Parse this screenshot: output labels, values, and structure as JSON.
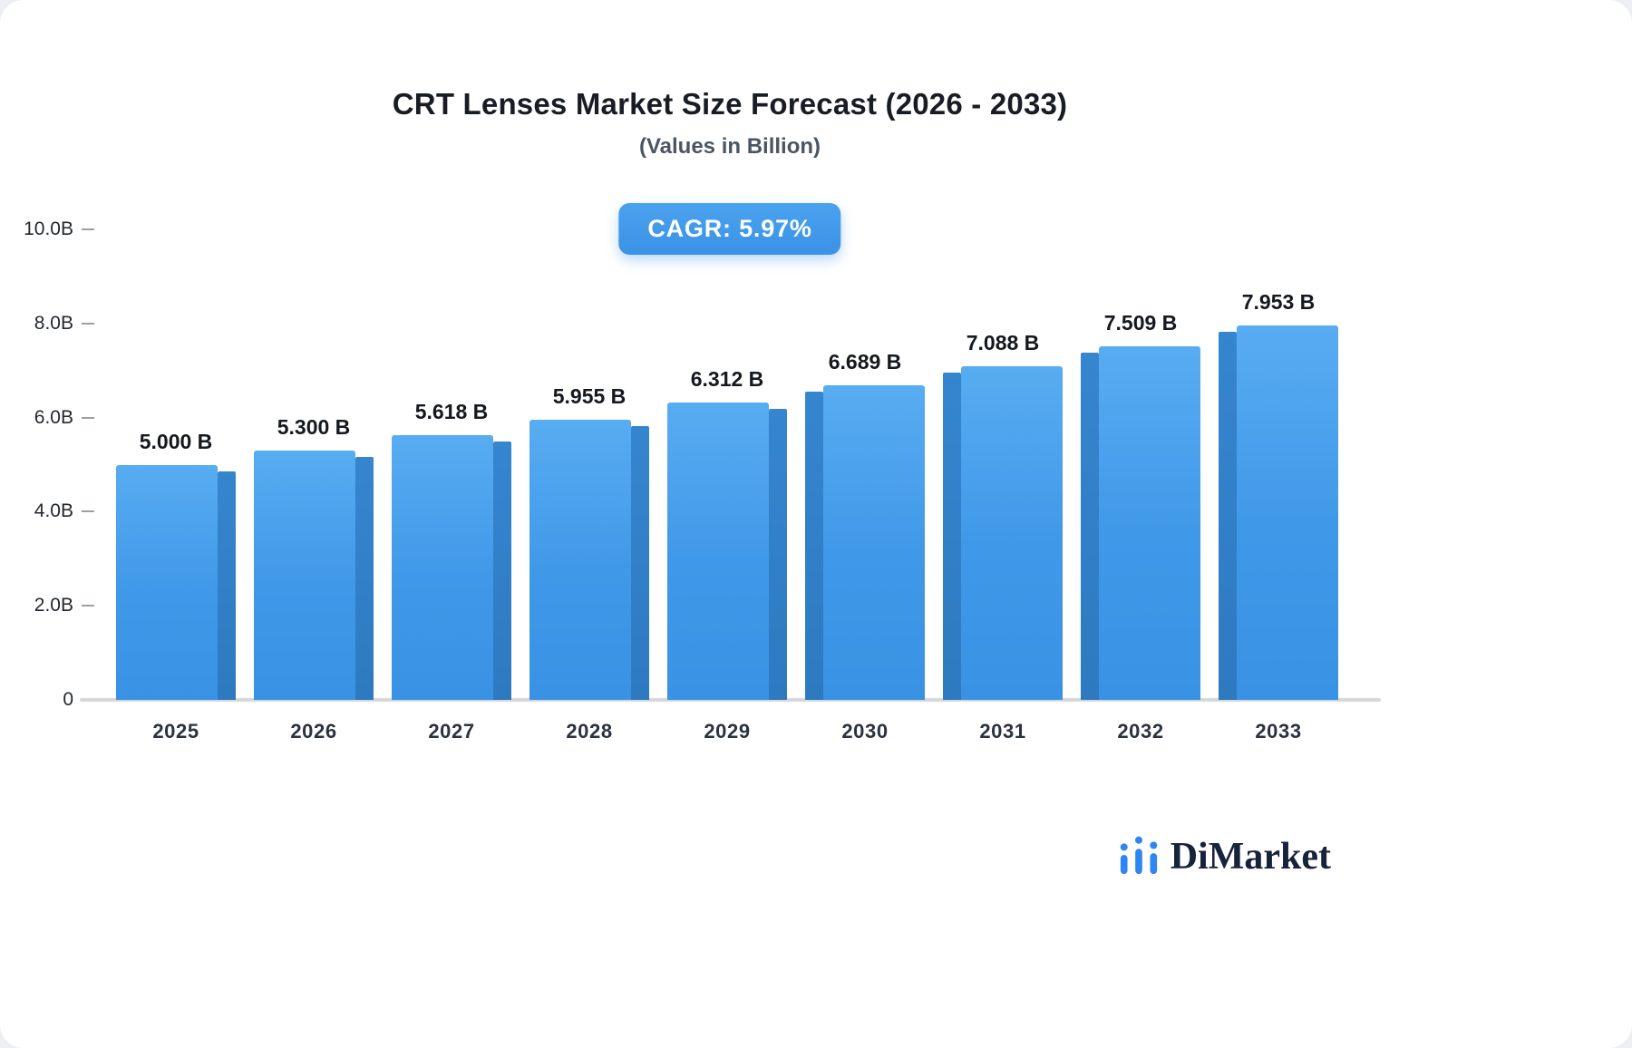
{
  "header": {
    "title": "CRT Lenses Market Size Forecast (2026 - 2033)",
    "subtitle": "(Values in Billion)",
    "cagr_label": "CAGR: 5.97%"
  },
  "chart_data": {
    "type": "bar",
    "title": "CRT Lenses Market Size Forecast (2026 - 2033)",
    "subtitle": "(Values in Billion)",
    "unit": "Billion",
    "categories": [
      "2025",
      "2026",
      "2027",
      "2028",
      "2029",
      "2030",
      "2031",
      "2032",
      "2033"
    ],
    "values": [
      5.0,
      5.3,
      5.618,
      5.955,
      6.312,
      6.689,
      7.088,
      7.509,
      7.953
    ],
    "value_labels": [
      "5.000 B",
      "5.300 B",
      "5.618 B",
      "5.955 B",
      "6.312 B",
      "6.689 B",
      "7.088 B",
      "7.509 B",
      "7.953 B"
    ],
    "cagr": "5.97%",
    "ylim": [
      0,
      10
    ],
    "y_ticks": {
      "values": [
        0,
        2,
        4,
        6,
        8,
        10
      ],
      "labels": [
        "0",
        "2.0B",
        "4.0B",
        "6.0B",
        "8.0B",
        "10.0B"
      ]
    },
    "grid": false,
    "legend": "none",
    "bar_face_color_top": "#58ACF1",
    "bar_face_color_bottom": "#3A92E4",
    "bar_side_color": "#2E7AC0",
    "badge_color": "#3B92E6",
    "axis_line_color": "#D6D8DB"
  },
  "logo": {
    "text": "DiMarket",
    "icon": "bar-chart-icon",
    "icon_color": "#2E86F0",
    "text_color": "#17223B"
  }
}
